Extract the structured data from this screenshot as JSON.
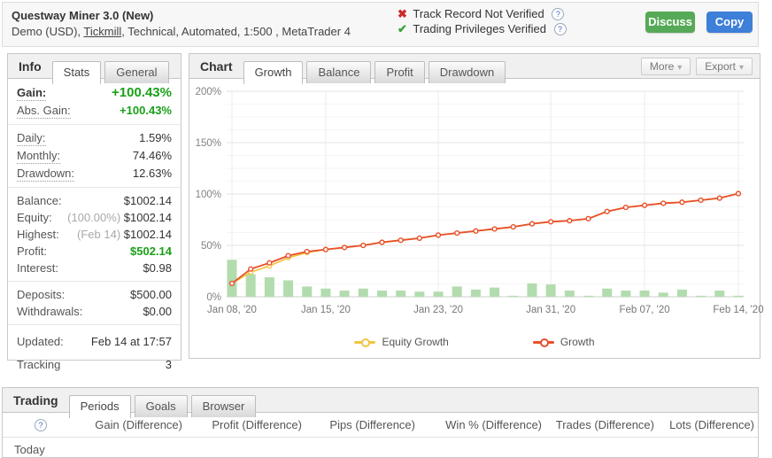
{
  "header": {
    "title": "Questway Miner 3.0 (New)",
    "subtitle_prefix": "Demo (USD), ",
    "broker": "Tickmill",
    "subtitle_suffix": ", Technical, Automated, 1:500 , MetaTrader 4",
    "verifications": [
      {
        "status": "fail",
        "label": "Track Record Not Verified"
      },
      {
        "status": "ok",
        "label": "Trading Privileges Verified"
      }
    ],
    "discuss_label": "Discuss",
    "copy_label": "Copy"
  },
  "info_panel": {
    "title": "Info",
    "tabs": [
      "Stats",
      "General"
    ],
    "active_tab": "Stats",
    "groups": [
      [
        {
          "label": "Gain:",
          "value": "+100.43%",
          "dotted": true,
          "label_bold": true,
          "green": true,
          "big": true
        },
        {
          "label": "Abs. Gain:",
          "value": "+100.43%",
          "dotted": true,
          "green": true
        }
      ],
      [
        {
          "label": "Daily:",
          "value": "1.59%",
          "dotted": true
        },
        {
          "label": "Monthly:",
          "value": "74.46%",
          "dotted": true
        },
        {
          "label": "Drawdown:",
          "value": "12.63%",
          "dotted": true
        }
      ],
      [
        {
          "label": "Balance:",
          "value": "$1002.14"
        },
        {
          "label": "Equity:",
          "prefix": "(100.00%) ",
          "value": "$1002.14"
        },
        {
          "label": "Highest:",
          "prefix": "(Feb 14) ",
          "value": "$1002.14"
        },
        {
          "label": "Profit:",
          "value": "$502.14",
          "green": true
        },
        {
          "label": "Interest:",
          "value": "$0.98"
        }
      ],
      [
        {
          "label": "Deposits:",
          "value": "$500.00"
        },
        {
          "label": "Withdrawals:",
          "value": "$0.00"
        }
      ],
      [
        {
          "label": "Updated:",
          "value": "Feb 14 at 17:57",
          "spaced": true
        },
        {
          "label": "Tracking",
          "value": "3",
          "spaced": true
        }
      ]
    ]
  },
  "chart_panel": {
    "title": "Chart",
    "tabs": [
      "Growth",
      "Balance",
      "Profit",
      "Drawdown"
    ],
    "active_tab": "Growth",
    "more_label": "More",
    "export_label": "Export",
    "dropdown_arrow": "▾"
  },
  "chart_data": {
    "type": "line",
    "title": "Growth",
    "ylabel": "",
    "xlabel": "",
    "ylim": [
      0,
      200
    ],
    "yticks": [
      0,
      50,
      100,
      150,
      200
    ],
    "ytick_labels": [
      "0%",
      "50%",
      "100%",
      "150%",
      "200%"
    ],
    "x_count": 28,
    "x_tick_labels": [
      "Jan 08, '20",
      "Jan 15, '20",
      "Jan 23, '20",
      "Jan 31, '20",
      "Feb 07, '20",
      "Feb 14, '20"
    ],
    "x_tick_indices": [
      0,
      5,
      11,
      17,
      22,
      27
    ],
    "grid": true,
    "legend_position": "bottom",
    "series": [
      {
        "name": "Equity Growth",
        "type": "line",
        "color": "#f2c544",
        "values": [
          13,
          24,
          30,
          38,
          43,
          46,
          48,
          50,
          53,
          55,
          57,
          60,
          62,
          64,
          66,
          68,
          71,
          73,
          74,
          76,
          83,
          87,
          89,
          91,
          92,
          94,
          96,
          100.4
        ]
      },
      {
        "name": "Growth",
        "type": "line",
        "color": "#e8502d",
        "values": [
          13,
          27,
          33,
          40,
          44,
          46,
          48,
          50,
          53,
          55,
          57,
          60,
          62,
          64,
          66,
          68,
          71,
          73,
          74,
          76,
          83,
          87,
          89,
          91,
          92,
          94,
          96,
          100.4
        ]
      },
      {
        "name": "bars",
        "type": "bar",
        "color": "#b2dcae",
        "values": [
          36,
          22,
          19,
          16,
          10,
          8,
          6,
          8,
          6,
          6,
          5,
          5,
          10,
          7,
          9,
          1,
          13,
          12,
          6,
          1,
          8,
          6,
          6,
          4,
          7,
          1,
          6,
          1
        ]
      }
    ]
  },
  "trading_panel": {
    "title": "Trading",
    "tabs": [
      "Periods",
      "Goals",
      "Browser"
    ],
    "active_tab": "Periods",
    "table": {
      "columns": [
        "Gain (Difference)",
        "Profit (Difference)",
        "Pips (Difference)",
        "Win % (Difference)",
        "Trades (Difference)",
        "Lots (Difference)"
      ],
      "rows": [
        {
          "period": "Today"
        }
      ]
    }
  },
  "colors": {
    "discuss_green": "#56a956",
    "copy_blue": "#3d7fd9",
    "gain_green": "#18a018",
    "fail_red": "#cc2a2a",
    "ok_green": "#3aa33a",
    "growth_line": "#e8502d",
    "equity_line": "#f2c544",
    "bar_green": "#b2dcae"
  }
}
